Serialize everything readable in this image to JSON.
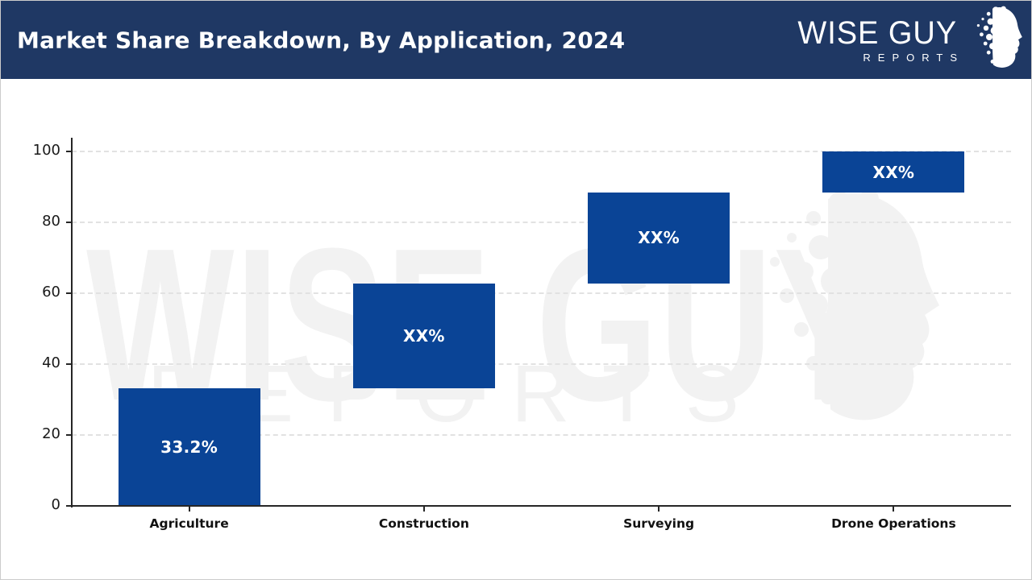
{
  "header": {
    "title": "Market Share Breakdown, By Application, 2024",
    "logo": {
      "brand": "WISE GUY",
      "sub": "REPORTS"
    }
  },
  "watermark": {
    "brand": "WISE GUY",
    "sub": "REPORTS"
  },
  "colors": {
    "header_bg": "#1f3864",
    "title_text": "#ffffff",
    "bar": "#0a4496",
    "bar_label": "#ffffff",
    "axis": "#262626",
    "grid": "#e2e2e2",
    "tick_label": "#1a1a1a",
    "category_label": "#111111",
    "watermark": "#f2f2f2",
    "frame_border": "#cccccc"
  },
  "chart_data": {
    "type": "bar",
    "subtype": "waterfall-floating-bars",
    "title": "Market Share Breakdown, By Application, 2024",
    "categories": [
      "Agriculture",
      "Construction",
      "Surveying",
      "Drone Operations"
    ],
    "segments": [
      {
        "category": "Agriculture",
        "start": 0,
        "end": 33.2,
        "label": "33.2%"
      },
      {
        "category": "Construction",
        "start": 33.2,
        "end": 62.8,
        "label": "XX%"
      },
      {
        "category": "Surveying",
        "start": 62.8,
        "end": 88.4,
        "label": "XX%"
      },
      {
        "category": "Drone Operations",
        "start": 88.4,
        "end": 100,
        "label": "XX%"
      }
    ],
    "xlabel": "",
    "ylabel": "",
    "ylim": [
      0,
      100
    ],
    "yticks": [
      0,
      20,
      40,
      60,
      80,
      100
    ],
    "grid": "horizontal-dashed",
    "legend": null
  }
}
